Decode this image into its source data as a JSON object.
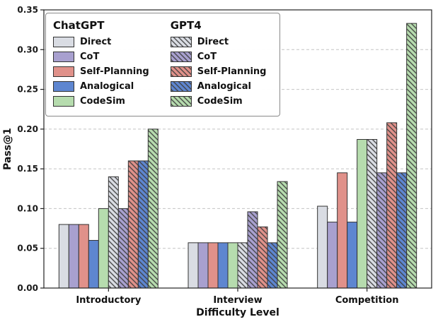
{
  "chart_data": {
    "type": "bar",
    "title": "",
    "xlabel": "Difficulty Level",
    "ylabel": "Pass@1",
    "ylim": [
      0,
      0.35
    ],
    "yticks": [
      0.0,
      0.05,
      0.1,
      0.15,
      0.2,
      0.25,
      0.3,
      0.35
    ],
    "grid": "horizontal-dashed",
    "legend_position": "upper-left",
    "categories": [
      "Introductory",
      "Interview",
      "Competition"
    ],
    "methods": [
      "Direct",
      "CoT",
      "Self-Planning",
      "Analogical",
      "CodeSim"
    ],
    "method_colors": [
      "#d9dce3",
      "#a8a0cf",
      "#e0918a",
      "#5e86d0",
      "#b6dcae"
    ],
    "bar_edge_color": "#333333",
    "hatch_color": "#3f3f3f",
    "model_groups": [
      {
        "name": "ChatGPT",
        "hatch": false,
        "series": [
          {
            "name": "Direct",
            "values": [
              0.08,
              0.057,
              0.103
            ]
          },
          {
            "name": "CoT",
            "values": [
              0.08,
              0.057,
              0.083
            ]
          },
          {
            "name": "Self-Planning",
            "values": [
              0.08,
              0.057,
              0.145
            ]
          },
          {
            "name": "Analogical",
            "values": [
              0.06,
              0.057,
              0.083
            ]
          },
          {
            "name": "CodeSim",
            "values": [
              0.1,
              0.057,
              0.187
            ]
          }
        ]
      },
      {
        "name": "GPT4",
        "hatch": true,
        "series": [
          {
            "name": "Direct",
            "values": [
              0.14,
              0.057,
              0.187
            ]
          },
          {
            "name": "CoT",
            "values": [
              0.1,
              0.096,
              0.145
            ]
          },
          {
            "name": "Self-Planning",
            "values": [
              0.16,
              0.077,
              0.208
            ]
          },
          {
            "name": "Analogical",
            "values": [
              0.16,
              0.057,
              0.145
            ]
          },
          {
            "name": "CodeSim",
            "values": [
              0.2,
              0.134,
              0.333
            ]
          }
        ]
      }
    ]
  },
  "legend": {
    "col1_header": "ChatGPT",
    "col2_header": "GPT4",
    "labels": [
      "Direct",
      "CoT",
      "Self-Planning",
      "Analogical",
      "CodeSim"
    ]
  }
}
